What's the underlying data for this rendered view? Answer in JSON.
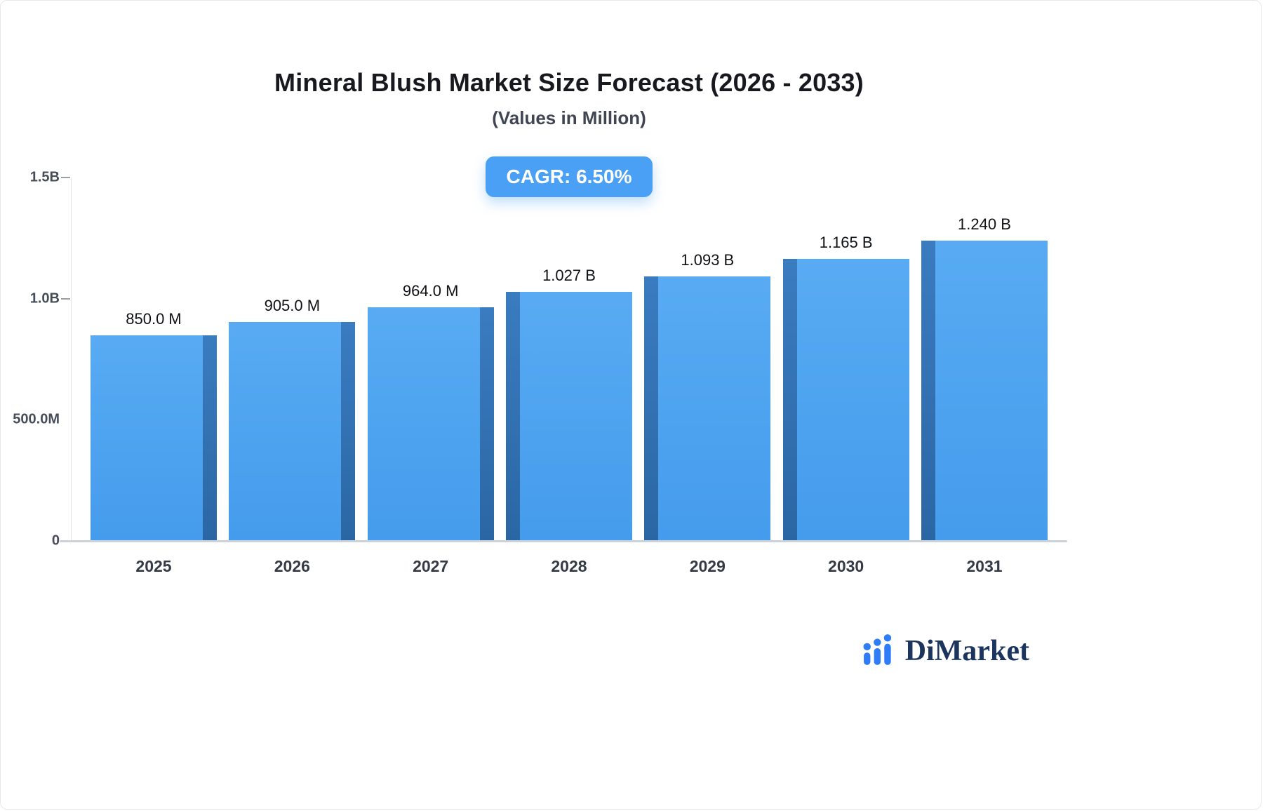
{
  "header": {
    "title": "Mineral Blush Market Size Forecast (2026 - 2033)",
    "subtitle": "(Values in Million)",
    "cagr_badge": "CAGR: 6.50%"
  },
  "brand": {
    "name": "DiMarket"
  },
  "colors": {
    "bar_face_top": "#58ABF3",
    "bar_face_bottom": "#459CEC",
    "bar_side": "#2F6FB2",
    "badge_bg": "#4AA0F4",
    "badge_text": "#FFFFFF",
    "axis_line": "#E0E3E8",
    "baseline": "#CCD2D9",
    "brand_text": "#1C355E",
    "brand_icon": "#2F7DF6"
  },
  "chart_data": {
    "type": "bar",
    "title": "Mineral Blush Market Size Forecast (2026 - 2033)",
    "subtitle": "(Values in Million)",
    "cagr": "6.50%",
    "categories": [
      "2025",
      "2026",
      "2027",
      "2028",
      "2029",
      "2030",
      "2031"
    ],
    "values": [
      850,
      905,
      964,
      1027,
      1093,
      1165,
      1240
    ],
    "value_labels": [
      "850.0 M",
      "905.0 M",
      "964.0 M",
      "1.027 B",
      "1.093 B",
      "1.165 B",
      "1.240 B"
    ],
    "unit_note": "values in millions",
    "ylim": [
      0,
      1500
    ],
    "yticks": [
      {
        "value": 0,
        "label": "0",
        "tick": false
      },
      {
        "value": 500,
        "label": "500.0M",
        "tick": false
      },
      {
        "value": 1000,
        "label": "1.0B",
        "tick": true
      },
      {
        "value": 1500,
        "label": "1.5B",
        "tick": true
      }
    ],
    "grid": false,
    "legend": false
  }
}
